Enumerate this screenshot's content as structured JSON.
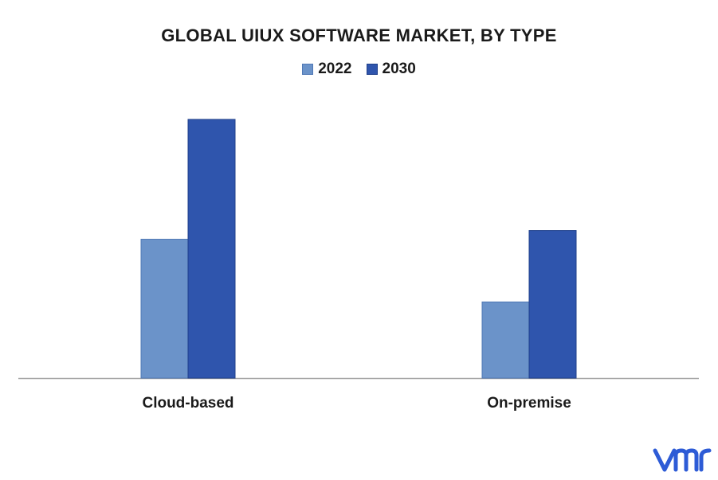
{
  "chart_data": {
    "type": "bar",
    "title": "GLOBAL UIUX SOFTWARE MARKET, BY TYPE",
    "xlabel": "",
    "ylabel": "",
    "categories": [
      "Cloud-based",
      "On-premise"
    ],
    "series": [
      {
        "name": "2022",
        "values": [
          175,
          96
        ],
        "color": "#6b93c9"
      },
      {
        "name": "2030",
        "values": [
          326,
          186
        ],
        "color": "#2f55ad"
      }
    ],
    "ylim": [
      0,
      350
    ],
    "grid": false,
    "legend_position": "top-center"
  },
  "logo": {
    "name": "vmr-logo",
    "color": "#2d5bd6"
  }
}
